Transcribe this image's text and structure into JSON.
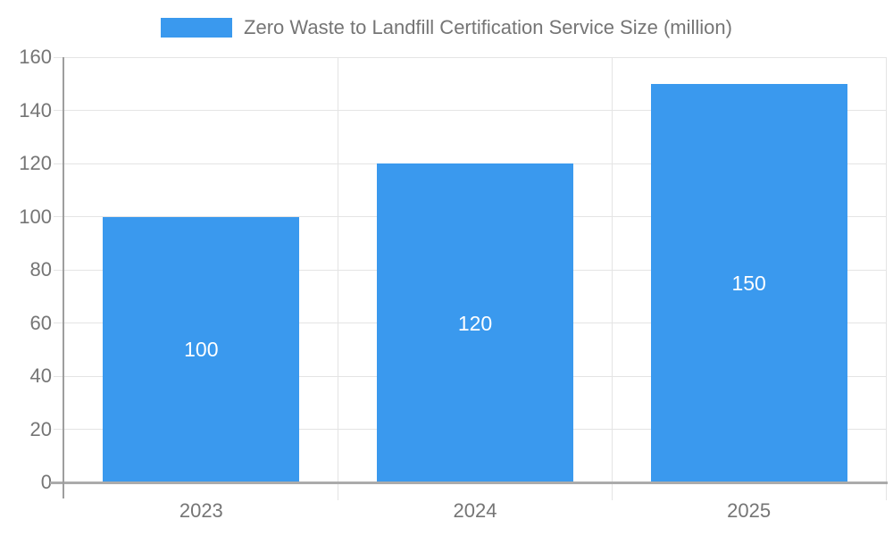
{
  "legend": {
    "label": "Zero Waste to Landfill Certification Service Size (million)"
  },
  "chart_data": {
    "type": "bar",
    "categories": [
      "2023",
      "2024",
      "2025"
    ],
    "values": [
      100,
      120,
      150
    ],
    "series_name": "Zero Waste to Landfill Certification Service Size (million)",
    "title": "",
    "xlabel": "",
    "ylabel": "",
    "ylim": [
      0,
      160
    ],
    "yticks": [
      0,
      20,
      40,
      60,
      80,
      100,
      120,
      140,
      160
    ],
    "grid": true,
    "legend_position": "top",
    "bar_labels_inside": true
  },
  "colors": {
    "bar": "#3A99EE",
    "gridline": "#E4E4E4",
    "y_axis_line": "#9E9E9E",
    "x_axis_line": "#ABABAB",
    "tick_text": "#757575",
    "bar_label_text": "#FFFFFF",
    "background": "#FFFFFF"
  }
}
